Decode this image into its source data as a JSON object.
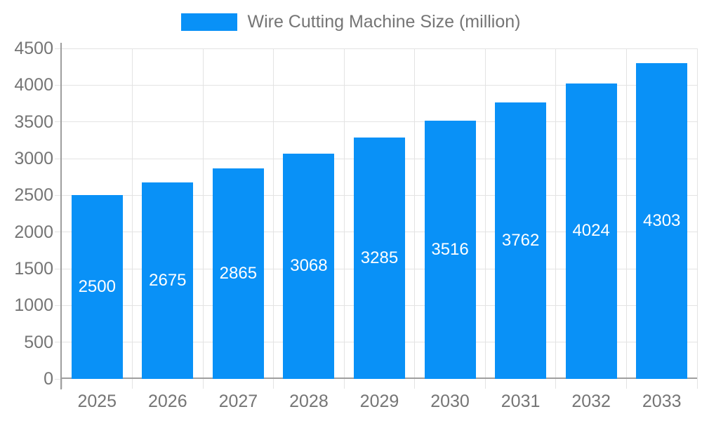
{
  "chart_data": {
    "type": "bar",
    "title": "Wire Cutting Machine Size (million)",
    "series_name": "Wire Cutting Machine Size (million)",
    "categories": [
      "2025",
      "2026",
      "2027",
      "2028",
      "2029",
      "2030",
      "2031",
      "2032",
      "2033"
    ],
    "values": [
      2500,
      2675,
      2865,
      3068,
      3285,
      3516,
      3762,
      4024,
      4303
    ],
    "xlabel": "",
    "ylabel": "",
    "ylim": [
      0,
      4500
    ],
    "ytick_step": 500,
    "grid": true,
    "legend_position": "top",
    "colors": {
      "bar": "#0991f7",
      "bar_value_label": "#ffffff",
      "axis_text": "#757575",
      "legend_text": "#757575",
      "gridline": "#e3e3e3",
      "axis_line": "#9e9e9e",
      "background": "#ffffff"
    }
  }
}
